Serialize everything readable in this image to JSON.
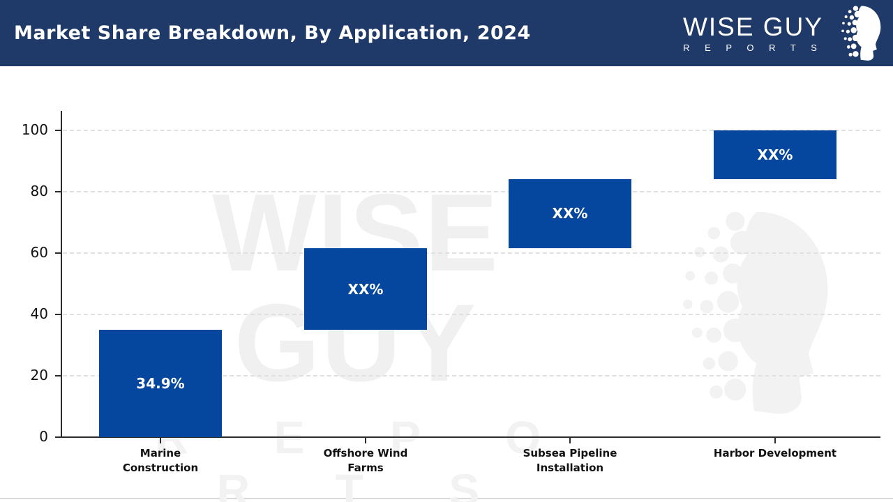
{
  "header": {
    "title": "Market Share Breakdown, By Application, 2024",
    "logo": {
      "wordmark": "WISE GUY",
      "subtext": "R E P O R T S"
    },
    "bg_color": "#1f3a68"
  },
  "watermark": {
    "line1": "WISE GUY",
    "line2": "R E P O R T S"
  },
  "chart_data": {
    "type": "bar",
    "variant": "waterfall",
    "title": "Market Share Breakdown, By Application, 2024",
    "categories": [
      "Marine Construction",
      "Offshore Wind Farms",
      "Subsea Pipeline Installation",
      "Harbor Development"
    ],
    "category_lines": [
      [
        "Marine",
        "Construction"
      ],
      [
        "Offshore Wind",
        "Farms"
      ],
      [
        "Subsea Pipeline",
        "Installation"
      ],
      [
        "Harbor Development"
      ]
    ],
    "segments": [
      {
        "category": "Marine Construction",
        "start": 0,
        "end": 34.9,
        "label": "34.9%"
      },
      {
        "category": "Offshore Wind Farms",
        "start": 34.9,
        "end": 61.5,
        "label": "XX%"
      },
      {
        "category": "Subsea Pipeline Installation",
        "start": 61.5,
        "end": 84.2,
        "label": "XX%"
      },
      {
        "category": "Harbor Development",
        "start": 84.2,
        "end": 100,
        "label": "XX%"
      }
    ],
    "ylim": [
      0,
      100
    ],
    "yticks": [
      0,
      20,
      40,
      60,
      80,
      100
    ],
    "xlabel": "",
    "ylabel": "",
    "grid": "horizontal-dashed",
    "legend": "none",
    "bar_color": "#05479e",
    "bar_label_color": "#ffffff",
    "axis_color": "#2b2b2b",
    "gridline_color": "#e0e0e0"
  }
}
